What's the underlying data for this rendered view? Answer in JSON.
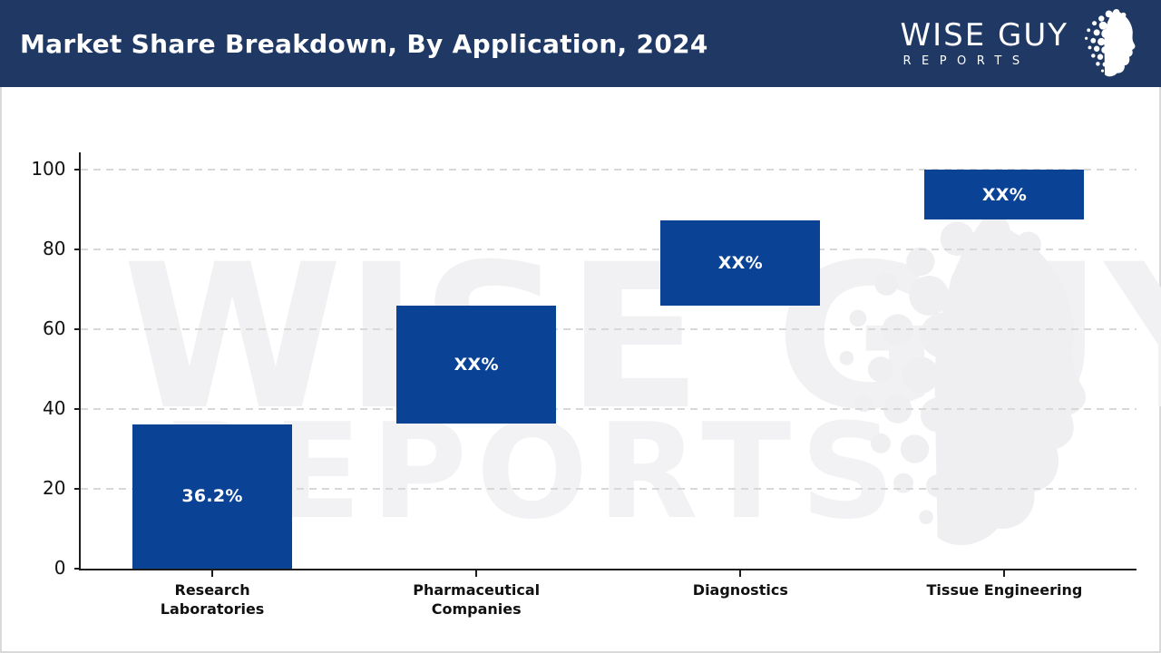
{
  "header": {
    "title": "Market Share Breakdown, By Application, 2024",
    "logo": {
      "line1": "WISE GUY",
      "line2": "REPORTS"
    }
  },
  "watermark": {
    "line1": "WISE GUY",
    "line2": "REPORTS"
  },
  "colors": {
    "header_bg": "#1f3864",
    "bar": "#0a4296",
    "bar_label": "#ffffff",
    "grid": "#d8d8d8",
    "axis": "#1c1c1c"
  },
  "chart_data": {
    "type": "bar",
    "subtype": "waterfall",
    "title": "Market Share Breakdown, By Application, 2024",
    "categories": [
      "Research Laboratories",
      "Pharmaceutical Companies",
      "Diagnostics",
      "Tissue Engineering"
    ],
    "category_label_lines": [
      [
        "Research",
        "Laboratories"
      ],
      [
        "Pharmaceutical",
        "Companies"
      ],
      [
        "Diagnostics"
      ],
      [
        "Tissue Engineering"
      ]
    ],
    "segments": [
      {
        "category": "Research Laboratories",
        "start": 0,
        "end": 36.2,
        "label": "36.2%"
      },
      {
        "category": "Pharmaceutical Companies",
        "start": 36.3,
        "end": 66.0,
        "label": "XX%"
      },
      {
        "category": "Diagnostics",
        "start": 65.9,
        "end": 87.3,
        "label": "XX%"
      },
      {
        "category": "Tissue Engineering",
        "start": 87.4,
        "end": 99.9,
        "label": "XX%"
      }
    ],
    "yticks": [
      0,
      20,
      40,
      60,
      80,
      100
    ],
    "ylim": [
      0,
      104
    ],
    "grid": "horizontal-dashed",
    "legend": "none",
    "bar_color": "#0a4296",
    "value_label_color": "#ffffff"
  }
}
